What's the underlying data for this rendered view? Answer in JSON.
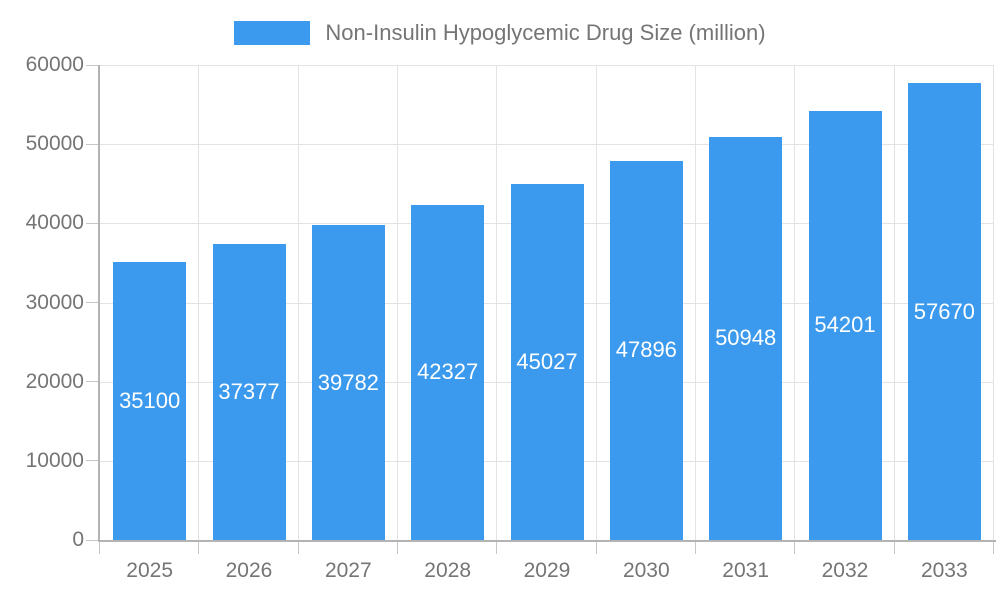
{
  "legend": {
    "label": "Non-Insulin Hypoglycemic Drug Size (million)"
  },
  "chart_data": {
    "type": "bar",
    "title": "",
    "categories": [
      "2025",
      "2026",
      "2027",
      "2028",
      "2029",
      "2030",
      "2031",
      "2032",
      "2033"
    ],
    "series": [
      {
        "name": "Non-Insulin Hypoglycemic Drug Size (million)",
        "values": [
          35100,
          37377,
          39782,
          42327,
          45027,
          47896,
          50948,
          54201,
          57670
        ]
      }
    ],
    "value_labels_shown": true,
    "xlabel": "",
    "ylabel": "",
    "ylim": [
      0,
      60000
    ],
    "yticks": [
      0,
      10000,
      20000,
      30000,
      40000,
      50000,
      60000
    ],
    "grid": true,
    "legend_position": "top",
    "colors": {
      "bar": "#3B9AEE",
      "value_label": "#FFFFFF",
      "axis_line": "#B3B3B3",
      "gridline": "#E3E3E3",
      "tick": "#C6C6C6",
      "tick_label": "#757575",
      "legend_text": "#757575",
      "background": "#FFFFFF"
    }
  }
}
